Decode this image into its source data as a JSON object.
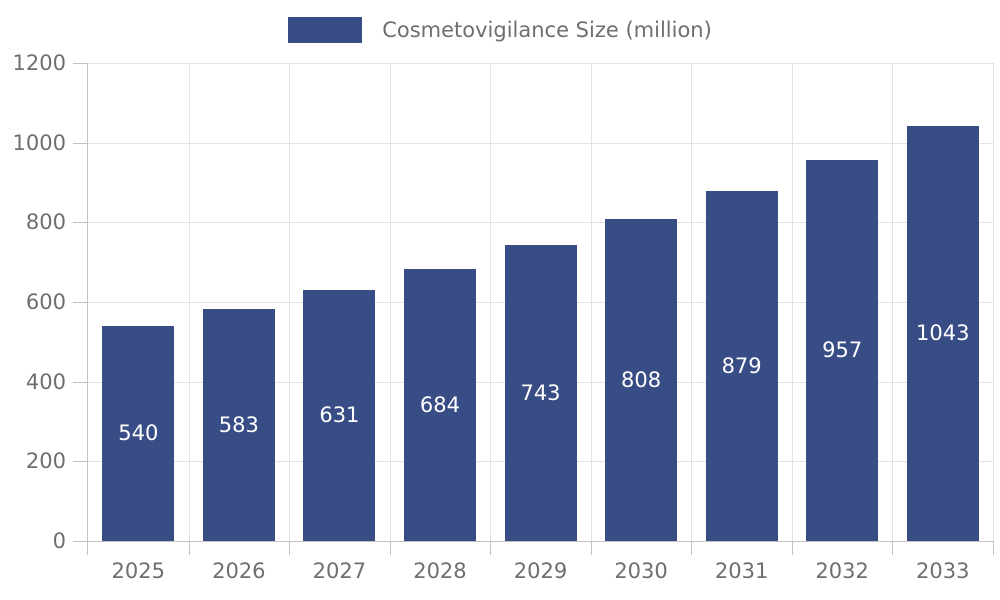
{
  "legend": {
    "label": "Cosmetovigilance Size (million)",
    "swatch_color": "#384C86"
  },
  "chart_data": {
    "type": "bar",
    "title": "",
    "xlabel": "",
    "ylabel": "",
    "categories": [
      "2025",
      "2026",
      "2027",
      "2028",
      "2029",
      "2030",
      "2031",
      "2032",
      "2033"
    ],
    "series": [
      {
        "name": "Cosmetovigilance Size (million)",
        "values": [
          540,
          583,
          631,
          684,
          743,
          808,
          879,
          957,
          1043
        ]
      }
    ],
    "value_labels": [
      "540",
      "583",
      "631",
      "684",
      "743",
      "808",
      "879",
      "957",
      "1043"
    ],
    "ylim": [
      0,
      1200
    ],
    "ytick_step": 200,
    "ytick_labels": [
      "0",
      "200",
      "400",
      "600",
      "800",
      "1000",
      "1200"
    ],
    "grid": true,
    "legend_position": "top-center"
  },
  "colors": {
    "bar": "#384C86",
    "bar_label": "#ffffff",
    "grid": "#e2e2e2",
    "spine": "#c2c2c2",
    "tick_text": "#6f6f6f",
    "background": "#ffffff"
  }
}
